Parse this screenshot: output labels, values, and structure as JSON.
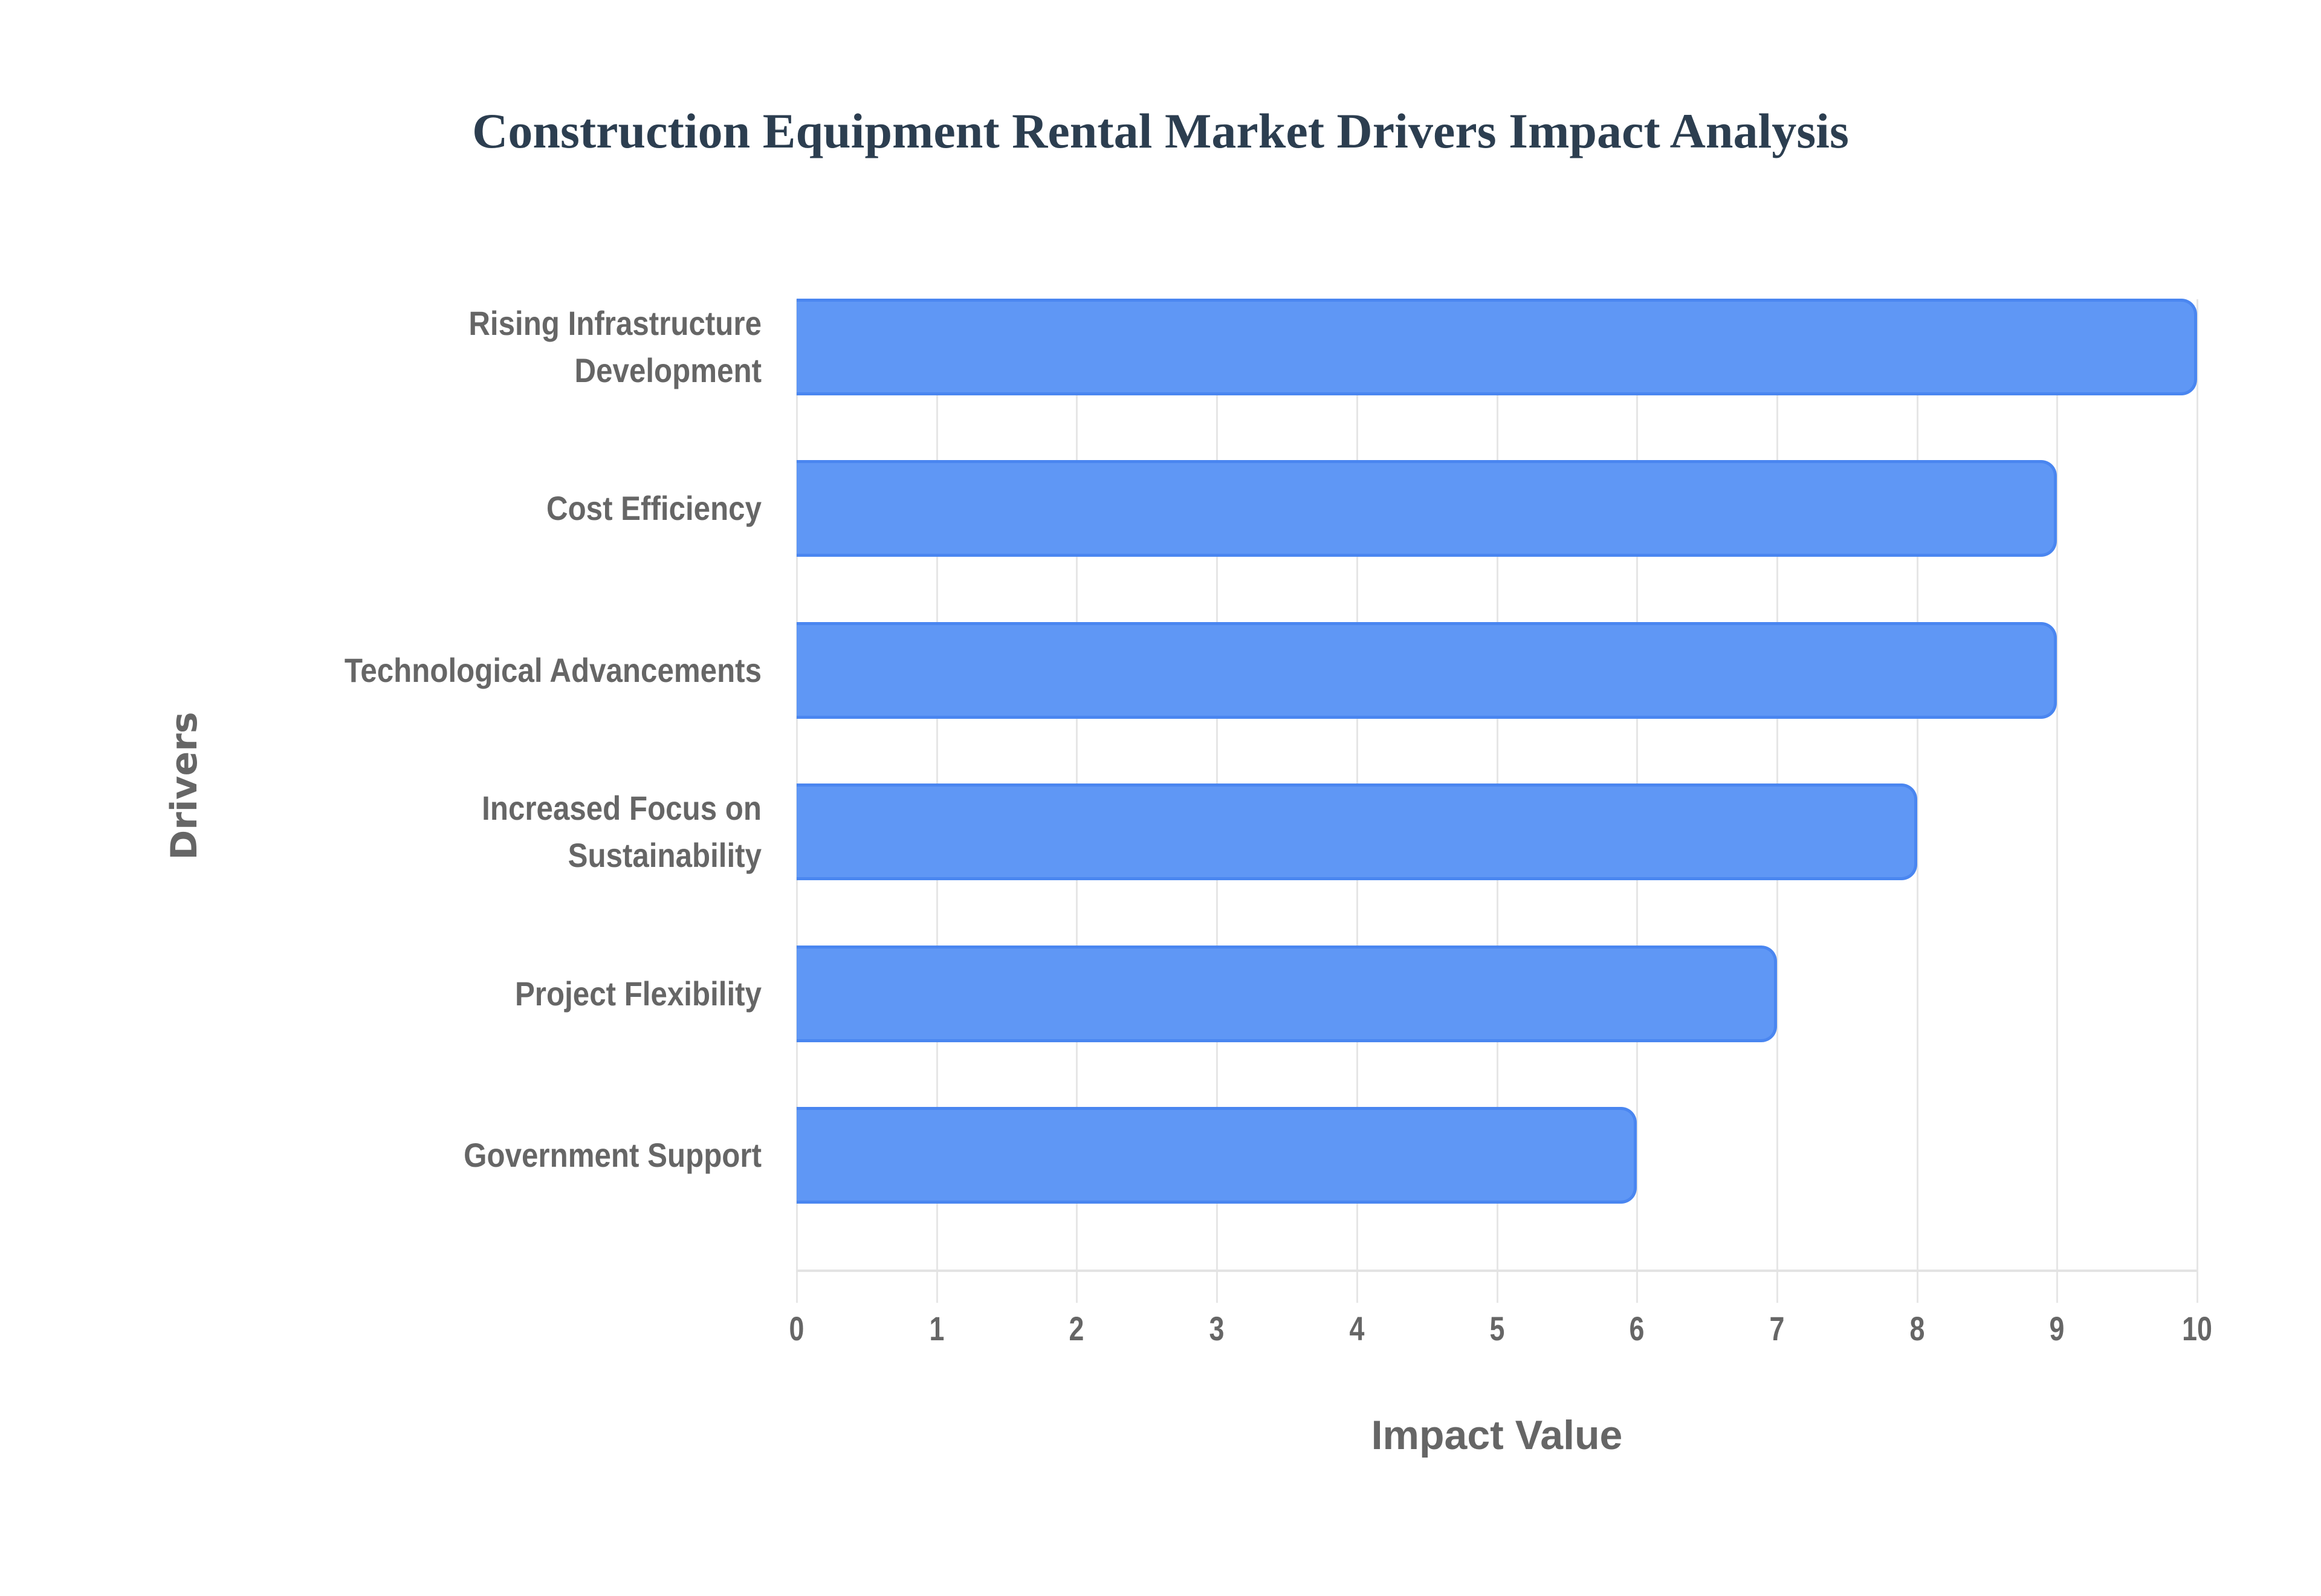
{
  "chart_data": {
    "type": "bar",
    "orientation": "horizontal",
    "title": "Construction Equipment Rental Market Drivers Impact Analysis",
    "xlabel": "Impact Value",
    "ylabel": "Drivers",
    "xlim": [
      0,
      10
    ],
    "x_ticks": [
      "0",
      "1",
      "2",
      "3",
      "4",
      "5",
      "6",
      "7",
      "8",
      "9",
      "10"
    ],
    "grid": true,
    "legend": null,
    "categories": [
      "Rising Infrastructure Development",
      "Cost Efficiency",
      "Technological Advancements",
      "Increased Focus on Sustainability",
      "Project Flexibility",
      "Government Support"
    ],
    "category_label_lines": [
      [
        "Rising Infrastructure",
        "Development"
      ],
      [
        "Cost Efficiency"
      ],
      [
        "Technological Advancements"
      ],
      [
        "Increased Focus on",
        "Sustainability"
      ],
      [
        "Project Flexibility"
      ],
      [
        "Government Support"
      ]
    ],
    "values": [
      10,
      9,
      9,
      8,
      7,
      6
    ],
    "colors": {
      "bar_fill": "#5f97f5",
      "bar_border": "#4a86f0",
      "title": "#2c3e50",
      "axis_text": "#666666",
      "grid": "#e6e6e6"
    }
  }
}
